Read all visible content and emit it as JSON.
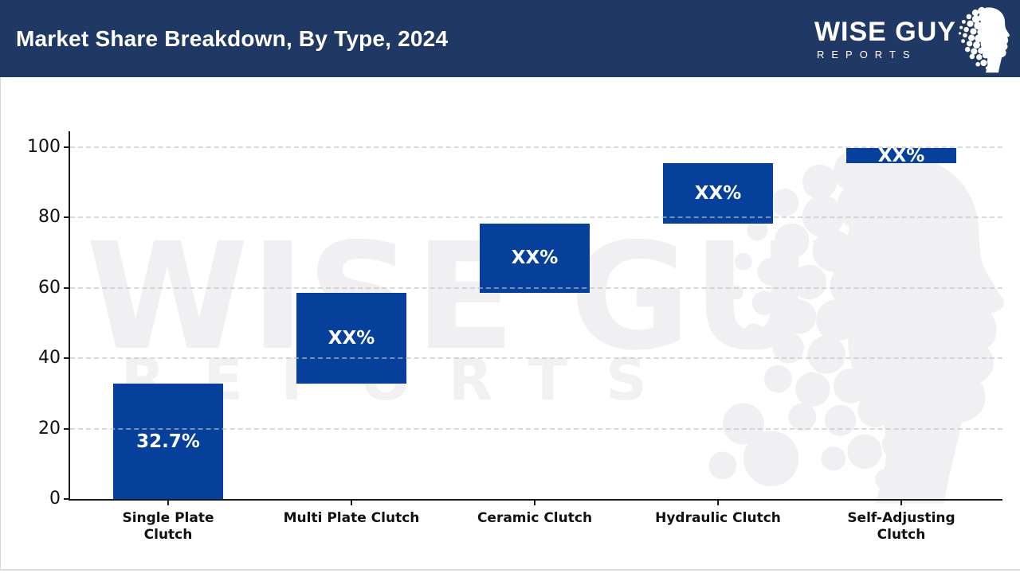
{
  "header": {
    "title": "Market Share Breakdown, By Type, 2024",
    "bg_color": "#1f3864",
    "logo": {
      "line1": "WISE GUY",
      "line2": "REPORTS"
    }
  },
  "watermark": {
    "line1": "WISE GUY",
    "line2": "REPORTS"
  },
  "chart_data": {
    "type": "bar",
    "subtype": "waterfall",
    "title": "Market Share Breakdown, By Type, 2024",
    "categories": [
      "Single Plate Clutch",
      "Multi Plate Clutch",
      "Ceramic Clutch",
      "Hydraulic Clutch",
      "Self-Adjusting Clutch"
    ],
    "tick_labels": [
      "Single Plate\nClutch",
      "Multi Plate Clutch",
      "Ceramic Clutch",
      "Hydraulic Clutch",
      "Self-Adjusting\nClutch"
    ],
    "segments": [
      {
        "category": "Single Plate Clutch",
        "start": 0,
        "end": 32.7,
        "label": "32.7%"
      },
      {
        "category": "Multi Plate Clutch",
        "start": 32.7,
        "end": 58.7,
        "label": "XX%"
      },
      {
        "category": "Ceramic Clutch",
        "start": 58.7,
        "end": 78.2,
        "label": "XX%"
      },
      {
        "category": "Hydraulic Clutch",
        "start": 78.2,
        "end": 95.4,
        "label": "XX%"
      },
      {
        "category": "Self-Adjusting Clutch",
        "start": 95.4,
        "end": 99.8,
        "label": "XX%"
      }
    ],
    "xlabel": "",
    "ylabel": "",
    "ylim": [
      0,
      105
    ],
    "yticks": [
      0,
      20,
      40,
      60,
      80,
      100
    ],
    "grid": {
      "axis": "y",
      "style": "dashed",
      "color": "#d4d4d4",
      "drawn_over_bars": true
    },
    "legend": "none",
    "bar_color": "#06409a",
    "bar_label_color": "#ffffff",
    "axis_color": "#1a1a1a"
  }
}
